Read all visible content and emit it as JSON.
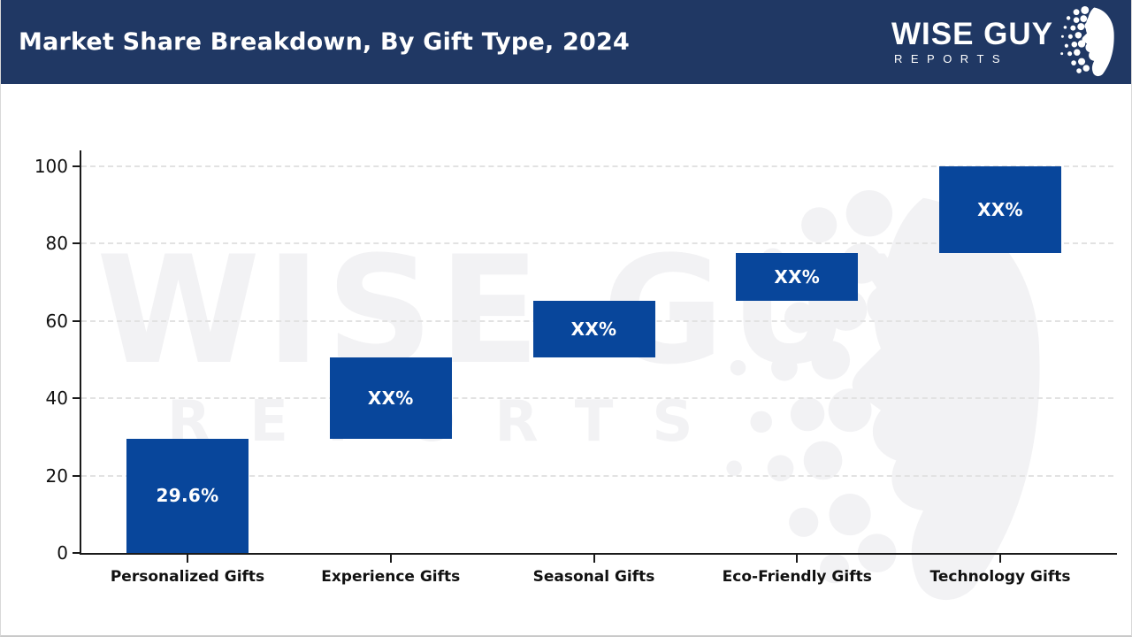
{
  "header": {
    "title": "Market Share Breakdown, By Gift Type, 2024",
    "bg_color": "#203864",
    "brand": {
      "line1": "WISE GUY",
      "line2": "REPORTS"
    }
  },
  "watermark": {
    "line1": "WISE GUY",
    "line2": "REPORTS"
  },
  "chart_data": {
    "type": "bar",
    "subtype": "waterfall",
    "title": "Market Share Breakdown, By Gift Type, 2024",
    "categories": [
      "Personalized Gifts",
      "Experience Gifts",
      "Seasonal Gifts",
      "Eco-Friendly Gifts",
      "Technology Gifts"
    ],
    "segments": [
      {
        "start": 0,
        "end": 29.6,
        "label": "29.6%"
      },
      {
        "start": 29.6,
        "end": 50.6,
        "label": "XX%"
      },
      {
        "start": 50.6,
        "end": 65.1,
        "label": "XX%"
      },
      {
        "start": 65.1,
        "end": 77.5,
        "label": "XX%"
      },
      {
        "start": 77.5,
        "end": 100,
        "label": "XX%"
      }
    ],
    "xlabel": "",
    "ylabel": "",
    "ylim": [
      0,
      100
    ],
    "yticks": [
      0,
      20,
      40,
      60,
      80,
      100
    ],
    "grid": "dashed-horizontal",
    "legend": "none",
    "bar_color": "#08469b",
    "bar_label_color": "#ffffff",
    "axis_color": "#1a1a1a"
  }
}
